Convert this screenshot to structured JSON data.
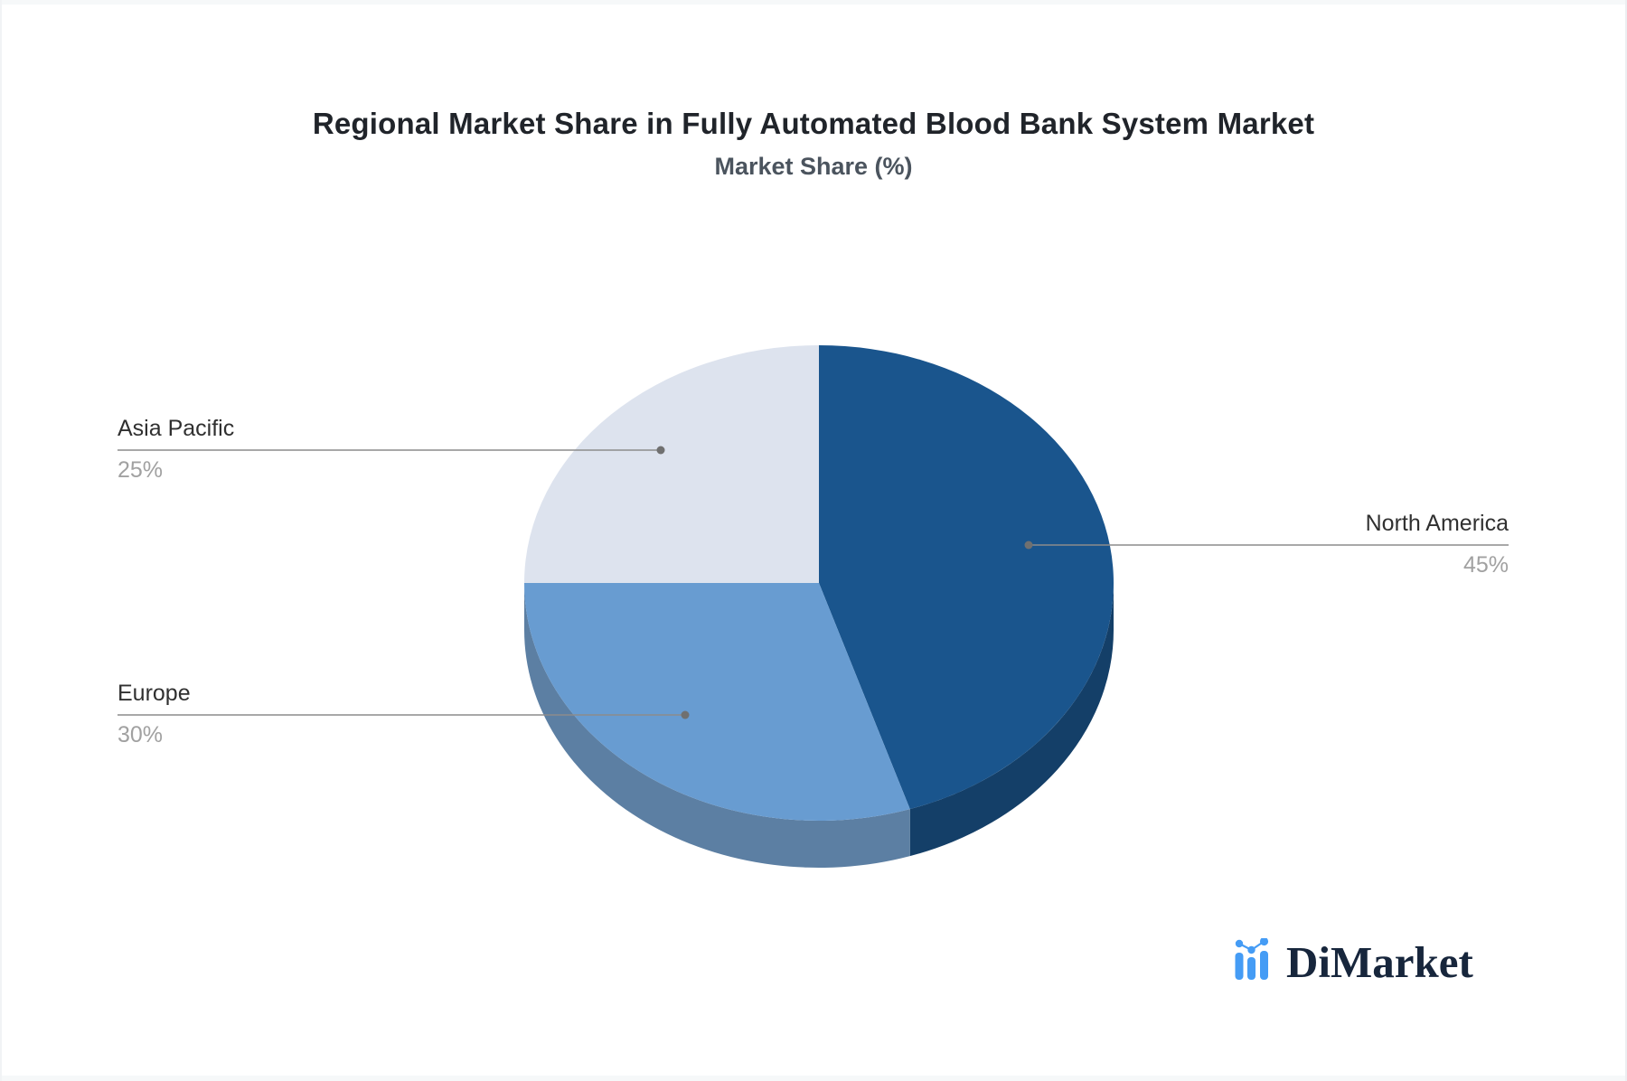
{
  "chart_data": {
    "type": "pie",
    "style": "3d",
    "title": "Regional Market Share in Fully Automated Blood Bank System Market",
    "subtitle": "Market Share (%)",
    "unit": "%",
    "labels": [
      "North America",
      "Europe",
      "Asia Pacific"
    ],
    "values": [
      45,
      30,
      25
    ],
    "display_values": [
      "45%",
      "30%",
      "25%"
    ],
    "colors": [
      "#1A558D",
      "#689CD1",
      "#DDE3EE"
    ],
    "side_colors": [
      "#143F68",
      "#5C7FA3",
      "#C4CEDC"
    ],
    "start_angle_deg": -90,
    "direction": "clockwise",
    "legend_position": "none",
    "label_style": "callout-lines"
  },
  "branding": {
    "logo_text": "DiMarket"
  },
  "theme": {
    "background": "#FFFFFF",
    "title_color": "#20242A",
    "subtitle_color": "#4B545E",
    "label_color": "#303030",
    "value_color": "#A1A1A1",
    "callout_line_color": "#8C8C8C",
    "callout_dot_color": "#707070",
    "logo_icon_color": "#459CF5",
    "logo_text_color": "#17263C"
  }
}
